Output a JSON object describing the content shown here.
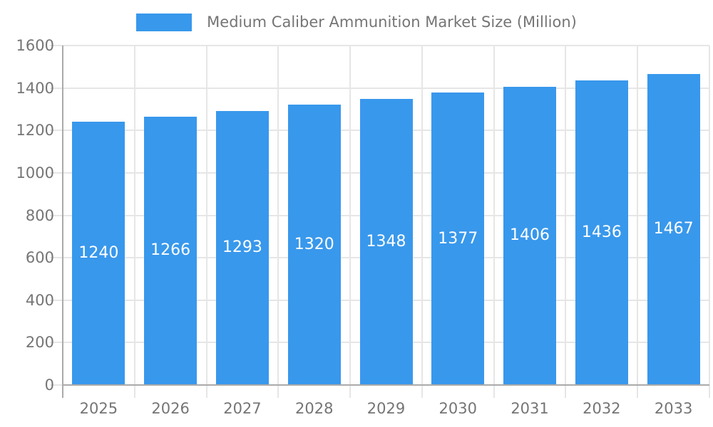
{
  "chart_data": {
    "type": "bar",
    "title": "Medium Caliber Ammunition Market Size (Million)",
    "categories": [
      "2025",
      "2026",
      "2027",
      "2028",
      "2029",
      "2030",
      "2031",
      "2032",
      "2033"
    ],
    "values": [
      1240,
      1266,
      1293,
      1320,
      1348,
      1377,
      1406,
      1436,
      1467
    ],
    "xlabel": "",
    "ylabel": "",
    "ylim": [
      0,
      1600
    ],
    "ytick_step": 200,
    "yticks": [
      0,
      200,
      400,
      600,
      800,
      1000,
      1200,
      1400,
      1600
    ],
    "grid": true,
    "legend_position": "top",
    "value_labels": "inside-center",
    "colors": {
      "bar": "#3898EC",
      "bar_value_label": "#ffffff",
      "axis_text": "#757575",
      "grid_line": "#e6e6e6",
      "axis_line": "#aaaaaa",
      "background": "#ffffff"
    }
  }
}
